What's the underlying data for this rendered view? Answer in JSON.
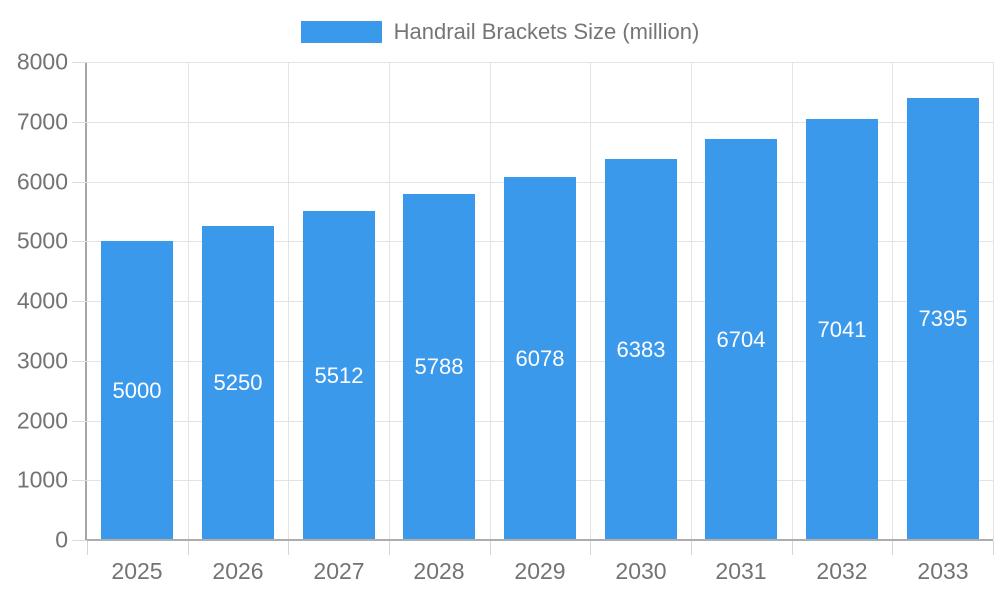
{
  "chart_data": {
    "type": "bar",
    "title": "Handrail Brackets Size (million)",
    "categories": [
      "2025",
      "2026",
      "2027",
      "2028",
      "2029",
      "2030",
      "2031",
      "2032",
      "2033"
    ],
    "values": [
      5000,
      5250,
      5512,
      5788,
      6078,
      6383,
      6704,
      7041,
      7395
    ],
    "xlabel": "",
    "ylabel": "",
    "ylim": [
      0,
      8000
    ],
    "y_ticks": [
      0,
      1000,
      2000,
      3000,
      4000,
      5000,
      6000,
      7000,
      8000
    ],
    "grid": "on",
    "legend": {
      "position": "top-center",
      "label": "Handrail Brackets Size (million)"
    },
    "colors": {
      "bar": "#3B99EC",
      "bar_value_label": "#FFFFFF",
      "axis_text": "#737373",
      "legend_text": "#757575",
      "grid_line": "#E3E3E3",
      "axis_line": "#A6A6A6"
    }
  }
}
